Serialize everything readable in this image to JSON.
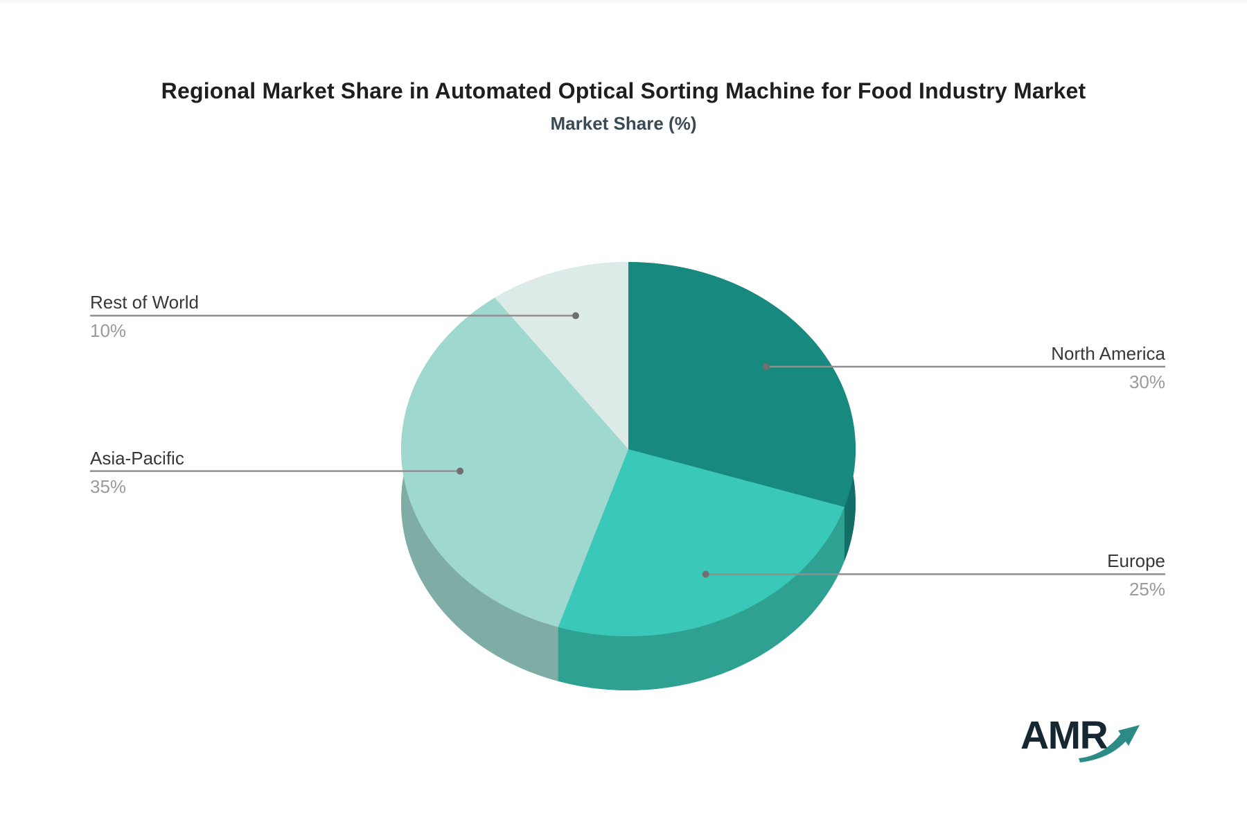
{
  "chart_data": {
    "type": "pie",
    "style": "3d",
    "title": "Regional Market Share in Automated Optical Sorting Machine for Food Industry Market",
    "subtitle": "Market Share (%)",
    "unit": "%",
    "categories": [
      "North America",
      "Europe",
      "Asia-Pacific",
      "Rest of World"
    ],
    "values": [
      30,
      25,
      35,
      10
    ],
    "value_labels": [
      "30%",
      "25%",
      "35%",
      "10%"
    ],
    "slice_colors": [
      "#17897f",
      "#3ac9b8",
      "#9fd8ce",
      "#dcebe8"
    ],
    "start_angle": "12-oclock",
    "direction": "clockwise",
    "legend": "none",
    "label_style": "callout-lines",
    "callout_line_color": "#8f8f8f",
    "callout_dot_color": "#6f6f6f"
  },
  "callouts": [
    {
      "label": "Rest of World",
      "value": "10%",
      "side": "left"
    },
    {
      "label": "North America",
      "value": "30%",
      "side": "right"
    },
    {
      "label": "Asia-Pacific",
      "value": "35%",
      "side": "left"
    },
    {
      "label": "Europe",
      "value": "25%",
      "side": "right"
    }
  ],
  "logo": {
    "text": "AMR",
    "text_color": "#152832",
    "arrow_color": "#2d8b85"
  }
}
